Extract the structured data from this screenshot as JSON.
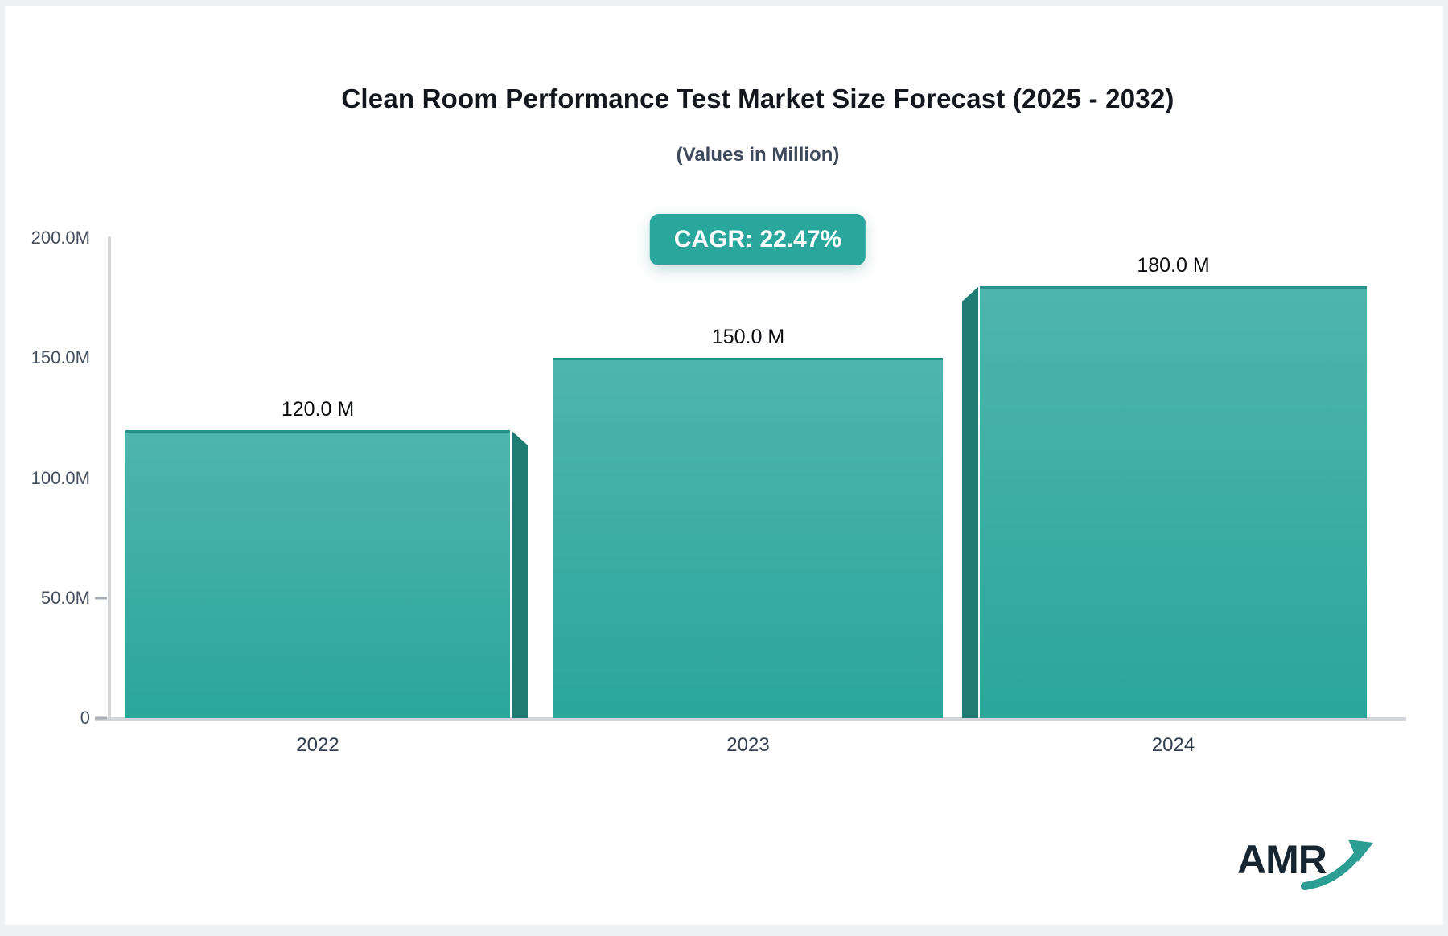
{
  "header": {
    "title": "Clean Room Performance Test Market Size Forecast (2025 - 2032)",
    "subtitle": "(Values in Million)"
  },
  "badge": {
    "label": "CAGR: 22.47%",
    "background": "#2aa79c"
  },
  "logo": {
    "text": "AMR",
    "arrow_icon": "trend-up-arrow",
    "arrow_color": "#2b9d92",
    "text_color": "#162530"
  },
  "colors": {
    "bar_top": "#4fb5ac",
    "bar_bottom": "#2aa69b",
    "bar_edge": "#2a9188",
    "bar_3d_side": "#1f7c73",
    "axis": "#d3d7dc",
    "tick_text": "#454f5e"
  },
  "chart_data": {
    "type": "bar",
    "title": "Clean Room Performance Test Market Size Forecast (2025 - 2032)",
    "subtitle": "(Values in Million)",
    "categories": [
      "2022",
      "2023",
      "2024"
    ],
    "values": [
      120,
      150,
      180
    ],
    "value_labels": [
      "120.0 M",
      "150.0 M",
      "180.0 M"
    ],
    "unit": "Million",
    "xlabel": "",
    "ylabel": "",
    "ylim": [
      0,
      200
    ],
    "yticks": [
      {
        "value": 200,
        "label": "200.0M",
        "dash": false
      },
      {
        "value": 150,
        "label": "150.0M",
        "dash": false
      },
      {
        "value": 100,
        "label": "100.0M",
        "dash": false
      },
      {
        "value": 50,
        "label": "50.0M",
        "dash": true
      },
      {
        "value": 0,
        "label": "0",
        "dash": true
      }
    ],
    "grid": false,
    "legend": false,
    "bar_3d_sides": [
      "right",
      "none",
      "left"
    ]
  }
}
